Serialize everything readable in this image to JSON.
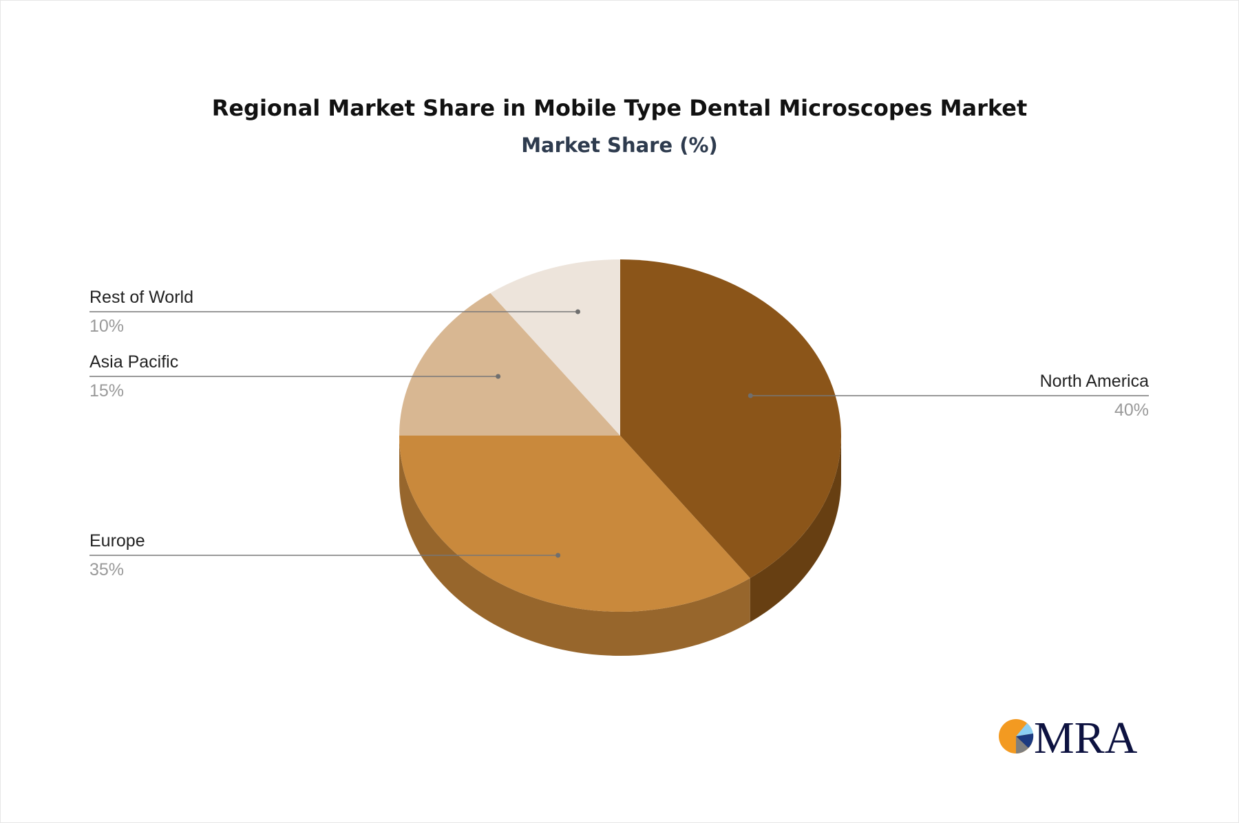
{
  "chart_data": {
    "type": "pie",
    "title": "Regional Market Share in Mobile Type Dental Microscopes Market",
    "subtitle": "Market Share (%)",
    "slices": [
      {
        "label": "North America",
        "value": 40,
        "value_label": "40%",
        "color": "#8b5519",
        "side_color": "#673f12"
      },
      {
        "label": "Europe",
        "value": 35,
        "value_label": "35%",
        "color": "#c9893c",
        "side_color": "#97662c"
      },
      {
        "label": "Asia Pacific",
        "value": 15,
        "value_label": "15%",
        "color": "#d8b792",
        "side_color": "#a28a6e"
      },
      {
        "label": "Rest of World",
        "value": 10,
        "value_label": "10%",
        "color": "#ede4db",
        "side_color": "#b2aba4"
      }
    ],
    "style": "3d-pie",
    "legend": "none"
  },
  "logo": {
    "text": "MRA",
    "colors": [
      "#f39a21",
      "#8ccff3",
      "#1c3a80",
      "#7f7f7f",
      "#0d1240"
    ]
  }
}
